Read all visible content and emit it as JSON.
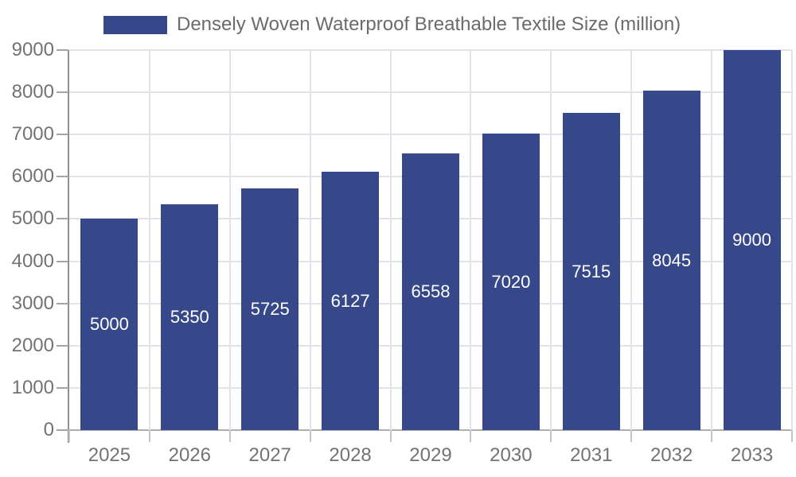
{
  "chart_data": {
    "type": "bar",
    "title": "Densely Woven Waterproof Breathable Textile Size (million)",
    "categories": [
      "2025",
      "2026",
      "2027",
      "2028",
      "2029",
      "2030",
      "2031",
      "2032",
      "2033"
    ],
    "series": [
      {
        "name": "Densely Woven Waterproof Breathable Textile Size (million)",
        "values": [
          5000,
          5350,
          5725,
          6127,
          6558,
          7020,
          7515,
          8045,
          9000
        ]
      }
    ],
    "xlabel": "",
    "ylabel": "",
    "ylim": [
      0,
      9000
    ],
    "yticks": [
      0,
      1000,
      2000,
      3000,
      4000,
      5000,
      6000,
      7000,
      8000,
      9000
    ],
    "grid": "on",
    "legend_position": "top",
    "value_label_position": "inside-center"
  },
  "colors": {
    "bar": "#36488a",
    "bar_value_label": "#ffffff",
    "legend_text": "#6b6b6b",
    "axis_text": "#737373",
    "gridline": "#e2e2e8",
    "y_axis_line": "#8f8f8f",
    "x_axis_line": "#aeaeae",
    "y_tick": "#a5a5a5",
    "x_tick": "#c4c4c8",
    "background": "#ffffff"
  }
}
